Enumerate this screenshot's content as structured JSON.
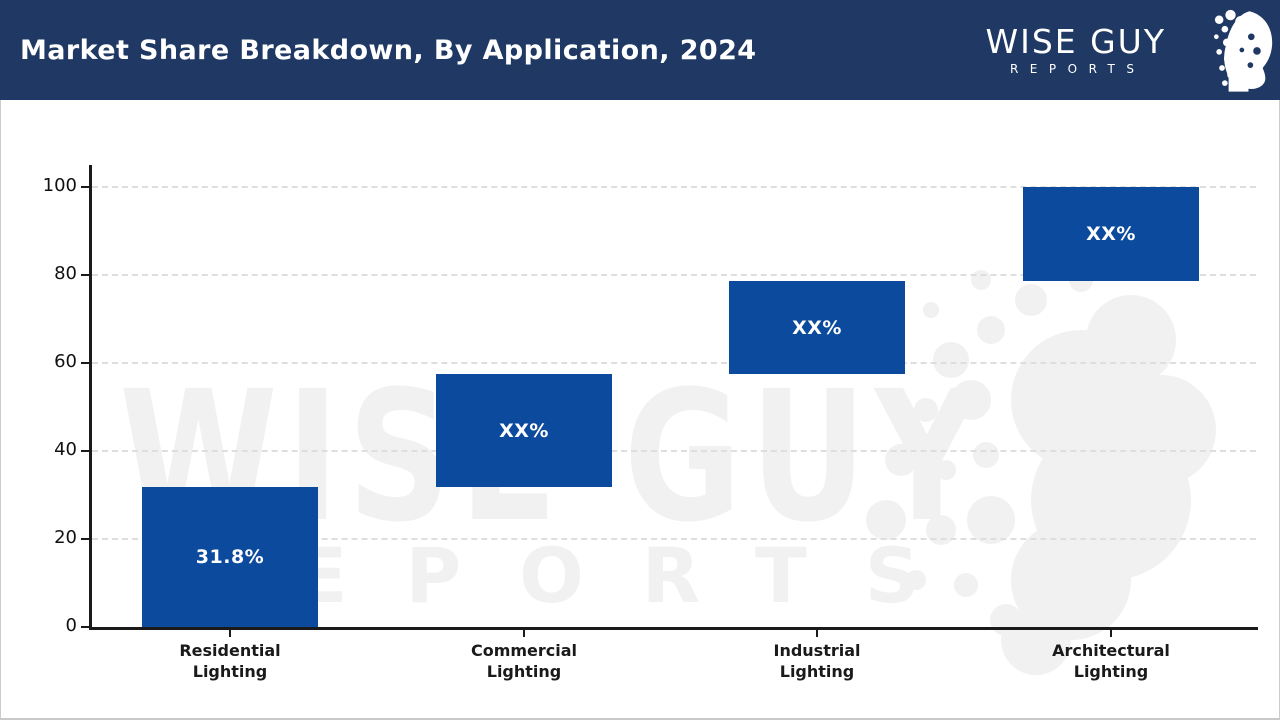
{
  "header": {
    "title": "Market Share Breakdown, By Application, 2024",
    "logo": {
      "line1": "WISE GUY",
      "line2": "REPORTS"
    }
  },
  "watermark": {
    "line1": "WISE GUY",
    "line2": "REPORTS"
  },
  "chart_data": {
    "type": "bar",
    "subtype": "waterfall",
    "title": "Market Share Breakdown, By Application, 2024",
    "categories": [
      [
        "Residential",
        "Lighting"
      ],
      [
        "Commercial",
        "Lighting"
      ],
      [
        "Industrial",
        "Lighting"
      ],
      [
        "Architectural",
        "Lighting"
      ]
    ],
    "segments": [
      {
        "category": "Residential Lighting",
        "start": 0,
        "end": 31.8,
        "value": 31.8,
        "label": "31.8%"
      },
      {
        "category": "Commercial Lighting",
        "start": 31.8,
        "end": 57.5,
        "value": 25.7,
        "label": "XX%"
      },
      {
        "category": "Industrial Lighting",
        "start": 57.5,
        "end": 78.6,
        "value": 21.1,
        "label": "XX%"
      },
      {
        "category": "Architectural Lighting",
        "start": 78.6,
        "end": 100,
        "value": 21.4,
        "label": "XX%"
      }
    ],
    "ylim": [
      0,
      100
    ],
    "yticks": [
      0,
      20,
      40,
      60,
      80,
      100
    ],
    "grid": "horizontal-dashed",
    "legend": "none",
    "colors": {
      "bar": "#0c4a9e",
      "bar_label": "#ffffff",
      "axis": "#1a1a1a",
      "grid": "#dedede",
      "header_bg": "#1f3864",
      "watermark": "#f1f1f2"
    }
  }
}
